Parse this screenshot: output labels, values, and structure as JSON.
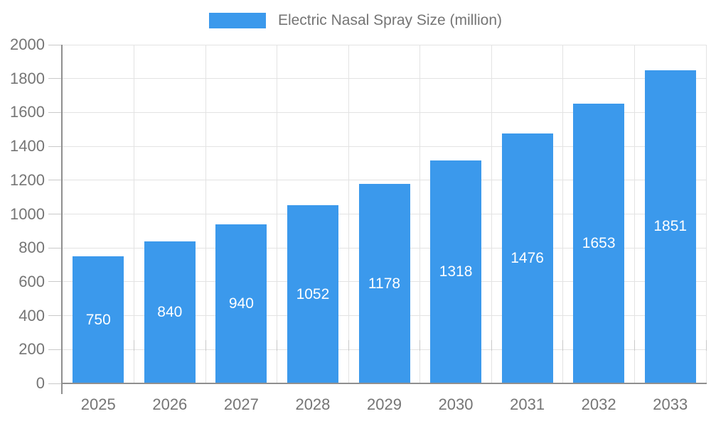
{
  "chart_data": {
    "type": "bar",
    "title": "Electric Nasal Spray Size (million)",
    "legend": [
      "Electric Nasal Spray Size (million)"
    ],
    "legend_position": "top",
    "categories": [
      "2025",
      "2026",
      "2027",
      "2028",
      "2029",
      "2030",
      "2031",
      "2032",
      "2033"
    ],
    "series": [
      {
        "name": "Electric Nasal Spray Size (million)",
        "values": [
          750,
          840,
          940,
          1052,
          1178,
          1318,
          1476,
          1653,
          1851
        ]
      }
    ],
    "xlabel": "",
    "ylabel": "",
    "ylim": [
      0,
      2000
    ],
    "ytick_step": 200,
    "grid": true,
    "value_labels": "centered-inside-bars",
    "colors": {
      "bar": "#3b99ec",
      "value_label": "#ffffff",
      "axis_text": "#757575",
      "axis_line": "#8f8f8f",
      "gridline": "#e3e3e3",
      "tick": "#c9c9c9",
      "background": "#ffffff"
    }
  }
}
